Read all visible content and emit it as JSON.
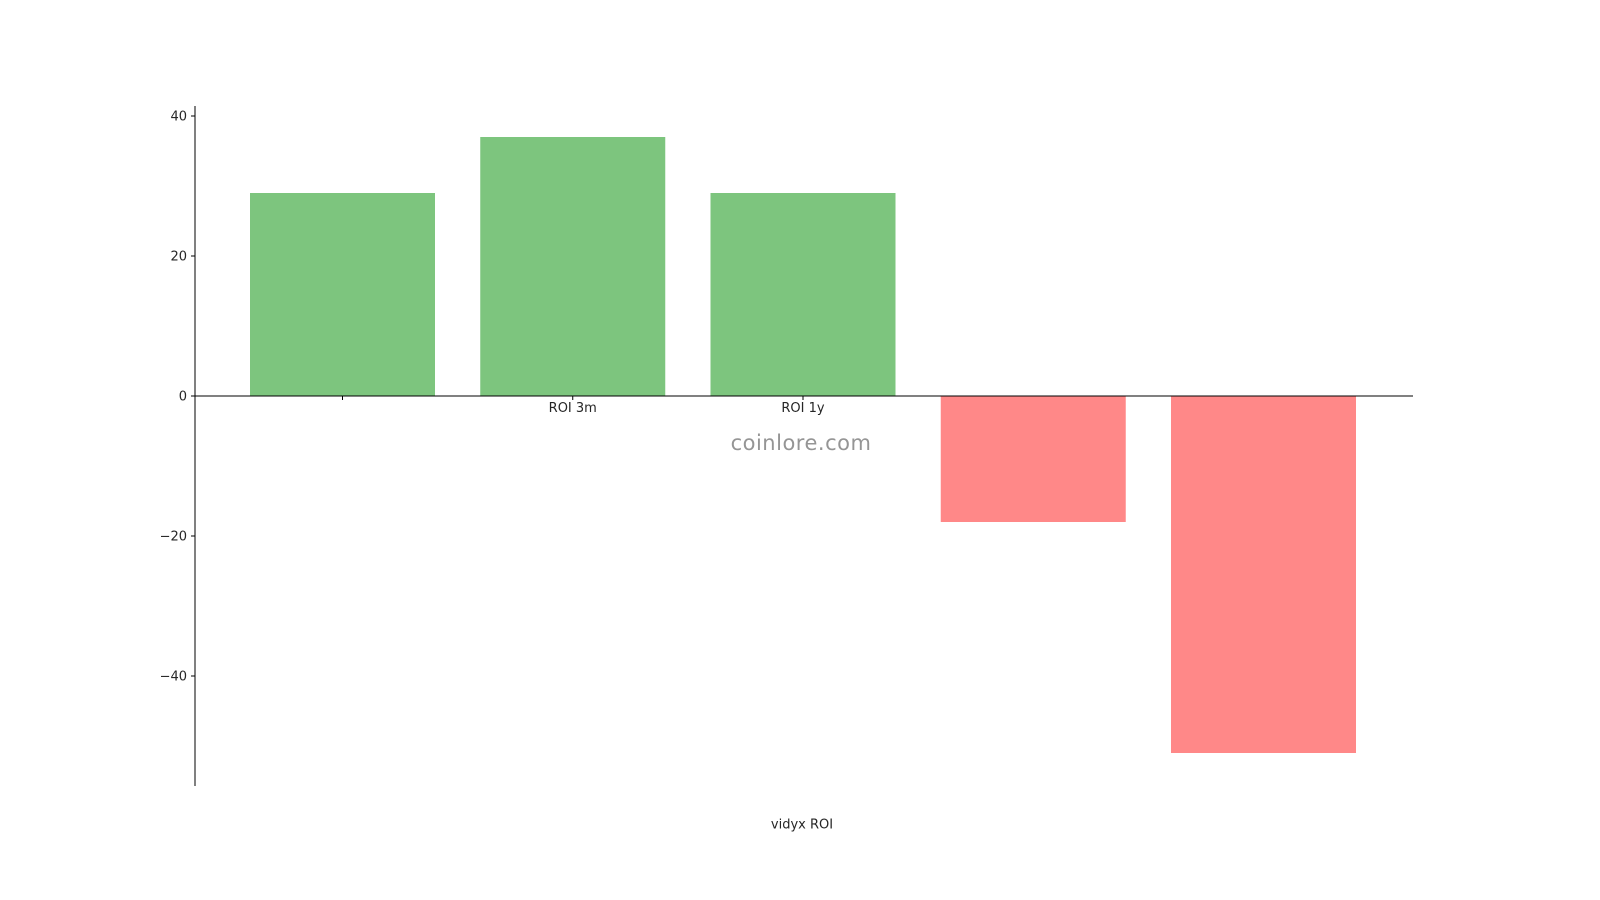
{
  "watermark": "coinlore.com",
  "chart_data": {
    "type": "bar",
    "title": "",
    "xlabel": "vidyx ROI",
    "ylabel": "",
    "categories": [
      "",
      "ROI 3m",
      "ROI 1y",
      "",
      ""
    ],
    "values": [
      29,
      37,
      29,
      -18,
      -51
    ],
    "ylim": [
      -55,
      43
    ],
    "yticks": [
      {
        "value": 40,
        "label": "40"
      },
      {
        "value": 20,
        "label": "20"
      },
      {
        "value": 0,
        "label": "0"
      },
      {
        "value": -20,
        "label": "−20"
      },
      {
        "value": -40,
        "label": "−40"
      }
    ],
    "grid": false,
    "legend": "none",
    "colors": {
      "positive": "#7dc57e",
      "negative": "#ff8888",
      "axis": "#000000",
      "tick_text": "#262626",
      "watermark": "#959595"
    }
  }
}
